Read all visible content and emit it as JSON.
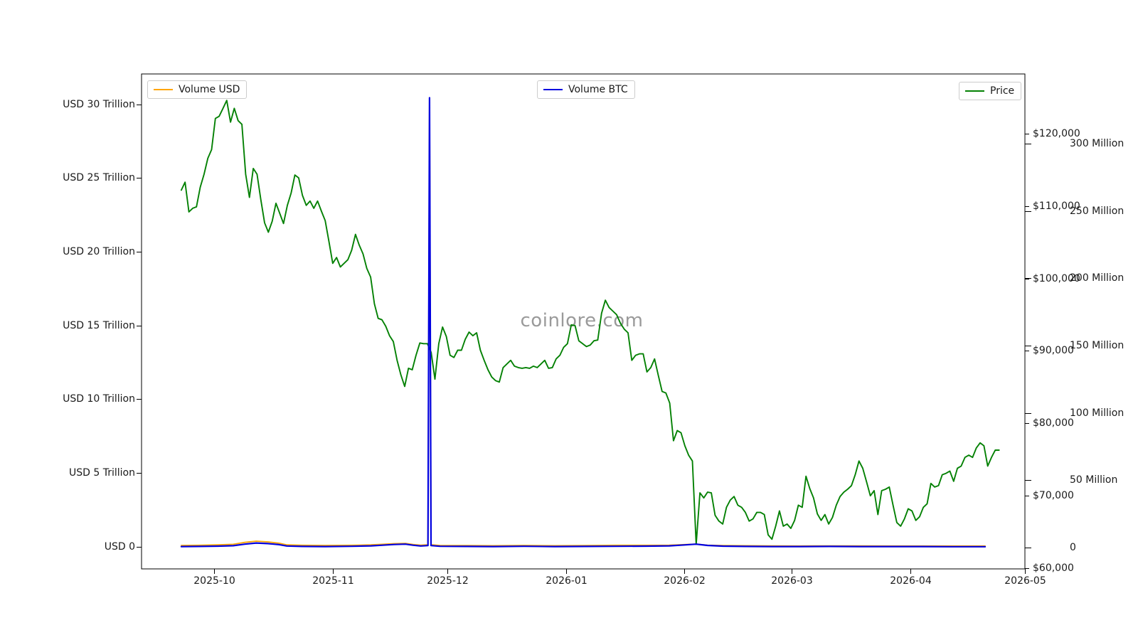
{
  "figure": {
    "watermark": "coinlore.com"
  },
  "legends": [
    {
      "id": "volume-usd",
      "label": "Volume USD",
      "color": "#ffa500"
    },
    {
      "id": "volume-btc",
      "label": "Volume BTC",
      "color": "#0000e0"
    },
    {
      "id": "price",
      "label": "Price",
      "color": "#048104"
    }
  ],
  "chart_data": {
    "type": "line",
    "watermark": "coinlore.com",
    "grid": false,
    "x_axis": {
      "start_date": "2025-09-12",
      "end_date": "2026-05-01",
      "total_days": 231,
      "ticks": [
        {
          "day": 19,
          "label": "2025-10"
        },
        {
          "day": 50,
          "label": "2025-11"
        },
        {
          "day": 80,
          "label": "2025-12"
        },
        {
          "day": 111,
          "label": "2026-01"
        },
        {
          "day": 142,
          "label": "2026-02"
        },
        {
          "day": 170,
          "label": "2026-03"
        },
        {
          "day": 201,
          "label": "2026-04"
        },
        {
          "day": 231,
          "label": "2026-05"
        }
      ]
    },
    "y_axes": {
      "volume_usd": {
        "side": "left",
        "unit": "USD Trillion",
        "range": [
          -1.5,
          32.05
        ],
        "ticks": [
          {
            "v": 0,
            "label": "USD 0"
          },
          {
            "v": 5,
            "label": "USD 5 Trillion"
          },
          {
            "v": 10,
            "label": "USD 10 Trillion"
          },
          {
            "v": 15,
            "label": "USD 15 Trillion"
          },
          {
            "v": 20,
            "label": "USD 20 Trillion"
          },
          {
            "v": 25,
            "label": "USD 25 Trillion"
          },
          {
            "v": 30,
            "label": "USD 30 Trillion"
          }
        ]
      },
      "price": {
        "side": "right",
        "unit": "USD",
        "range": [
          59900,
          128250
        ],
        "ticks": [
          {
            "v": 60000,
            "label": "$60,000"
          },
          {
            "v": 70000,
            "label": "$70,000"
          },
          {
            "v": 80000,
            "label": "$80,000"
          },
          {
            "v": 90000,
            "label": "$90,000"
          },
          {
            "v": 100000,
            "label": "$100,000"
          },
          {
            "v": 110000,
            "label": "$110,000"
          },
          {
            "v": 120000,
            "label": "$120,000"
          }
        ]
      },
      "volume_btc": {
        "side": "right_outer",
        "unit": "BTC Million",
        "range": [
          -15.8,
          351.7
        ],
        "ticks": [
          {
            "v": 0,
            "label": "0"
          },
          {
            "v": 50,
            "label": "50 Million"
          },
          {
            "v": 100,
            "label": "100 Million"
          },
          {
            "v": 150,
            "label": "150 Million"
          },
          {
            "v": 200,
            "label": "200 Million"
          },
          {
            "v": 250,
            "label": "250 Million"
          },
          {
            "v": 300,
            "label": "300 Million"
          }
        ]
      }
    },
    "series": [
      {
        "name": "Volume USD",
        "axis": "volume_usd",
        "color": "#ffa500",
        "width": 1.8,
        "points": [
          [
            10.4,
            0.09
          ],
          [
            15,
            0.1
          ],
          [
            20,
            0.13
          ],
          [
            24,
            0.17
          ],
          [
            27,
            0.3
          ],
          [
            30,
            0.38
          ],
          [
            33,
            0.33
          ],
          [
            36,
            0.24
          ],
          [
            38,
            0.13
          ],
          [
            42,
            0.1
          ],
          [
            48,
            0.09
          ],
          [
            55,
            0.1
          ],
          [
            60,
            0.13
          ],
          [
            63,
            0.17
          ],
          [
            66,
            0.21
          ],
          [
            69,
            0.23
          ],
          [
            71,
            0.16
          ],
          [
            73,
            0.11
          ],
          [
            74.9,
            0.14
          ],
          [
            75.3,
            30.4
          ],
          [
            75.7,
            0.14
          ],
          [
            78,
            0.09
          ],
          [
            85,
            0.08
          ],
          [
            92,
            0.07
          ],
          [
            100,
            0.09
          ],
          [
            108,
            0.07
          ],
          [
            116,
            0.08
          ],
          [
            124,
            0.1
          ],
          [
            132,
            0.1
          ],
          [
            138,
            0.11
          ],
          [
            142,
            0.15
          ],
          [
            145,
            0.18
          ],
          [
            148,
            0.11
          ],
          [
            152,
            0.08
          ],
          [
            158,
            0.07
          ],
          [
            165,
            0.06
          ],
          [
            172,
            0.05
          ],
          [
            180,
            0.06
          ],
          [
            188,
            0.06
          ],
          [
            196,
            0.05
          ],
          [
            204,
            0.05
          ],
          [
            212,
            0.05
          ],
          [
            220.6,
            0.05
          ]
        ]
      },
      {
        "name": "Price",
        "axis": "price",
        "color": "#048104",
        "width": 1.9,
        "start_day": 10.4,
        "step": 0.99,
        "values": [
          112200,
          113300,
          109200,
          109700,
          109900,
          112600,
          114400,
          116600,
          117800,
          122100,
          122400,
          123500,
          124600,
          121600,
          123500,
          121800,
          121300,
          114400,
          111200,
          115200,
          114400,
          110900,
          107700,
          106400,
          107900,
          110400,
          109000,
          107600,
          110100,
          111800,
          114300,
          113900,
          111500,
          110100,
          110700,
          109700,
          110700,
          109300,
          108000,
          105100,
          102100,
          102900,
          101600,
          102100,
          102600,
          103900,
          106100,
          104600,
          103400,
          101400,
          100200,
          96500,
          94500,
          94300,
          93400,
          92100,
          91300,
          88700,
          86700,
          85100,
          87600,
          87400,
          89400,
          91100,
          91000,
          91000,
          89800,
          86100,
          91000,
          93300,
          92000,
          89400,
          89100,
          90100,
          90100,
          91600,
          92600,
          92100,
          92500,
          90100,
          88700,
          87400,
          86400,
          85900,
          85700,
          87700,
          88200,
          88700,
          87900,
          87700,
          87600,
          87700,
          87600,
          87900,
          87700,
          88200,
          88700,
          87600,
          87700,
          88900,
          89400,
          90500,
          91000,
          93600,
          93500,
          91400,
          91000,
          90600,
          90800,
          91400,
          91500,
          95200,
          97000,
          96000,
          95500,
          95000,
          93800,
          93000,
          92500,
          88700,
          89400,
          89600,
          89600,
          87100,
          87700,
          88900,
          86600,
          84400,
          84200,
          82800,
          77600,
          79000,
          78700,
          76900,
          75600,
          74800,
          63300,
          70400,
          69700,
          70500,
          70400,
          67300,
          66500,
          66100,
          68400,
          69400,
          69900,
          68700,
          68400,
          67700,
          66500,
          66800,
          67700,
          67700,
          67400,
          64600,
          64000,
          65800,
          67900,
          65800,
          66100,
          65500,
          66600,
          68700,
          68400,
          72700,
          71000,
          69700,
          67500,
          66600,
          67400,
          66100,
          67000,
          68700,
          69900,
          70500,
          70900,
          71400,
          72900,
          74800,
          73800,
          71900,
          70000,
          70700,
          67400,
          70700,
          70900,
          71200,
          68700,
          66300,
          65800,
          66800,
          68200,
          67900,
          66600,
          67100,
          68400,
          68900,
          71700,
          71200,
          71400,
          72900,
          73100,
          73400,
          72000,
          73800,
          74100,
          75300,
          75600,
          75300,
          76600,
          77300,
          76900,
          74100,
          75300,
          76300,
          76300
        ]
      },
      {
        "name": "Volume BTC",
        "axis": "volume_btc",
        "color": "#0000e0",
        "width": 2.2,
        "points": [
          [
            10.4,
            0.8
          ],
          [
            15,
            0.9
          ],
          [
            20,
            1.1
          ],
          [
            24,
            1.4
          ],
          [
            27,
            2.6
          ],
          [
            30,
            3.4
          ],
          [
            33,
            3.0
          ],
          [
            36,
            2.2
          ],
          [
            38,
            1.2
          ],
          [
            42,
            0.9
          ],
          [
            48,
            0.8
          ],
          [
            55,
            1.0
          ],
          [
            60,
            1.3
          ],
          [
            63,
            1.8
          ],
          [
            66,
            2.3
          ],
          [
            69,
            2.6
          ],
          [
            71,
            1.8
          ],
          [
            73,
            1.2
          ],
          [
            74.9,
            1.5
          ],
          [
            75.3,
            334
          ],
          [
            75.7,
            1.5
          ],
          [
            78,
            1.0
          ],
          [
            85,
            0.9
          ],
          [
            92,
            0.8
          ],
          [
            100,
            1.0
          ],
          [
            108,
            0.8
          ],
          [
            116,
            0.9
          ],
          [
            124,
            1.0
          ],
          [
            132,
            1.1
          ],
          [
            138,
            1.3
          ],
          [
            142,
            2.0
          ],
          [
            145,
            2.6
          ],
          [
            148,
            1.6
          ],
          [
            152,
            1.1
          ],
          [
            158,
            0.9
          ],
          [
            165,
            0.8
          ],
          [
            172,
            0.8
          ],
          [
            180,
            0.9
          ],
          [
            188,
            0.8
          ],
          [
            196,
            0.8
          ],
          [
            204,
            0.8
          ],
          [
            212,
            0.7
          ],
          [
            220.6,
            0.7
          ]
        ]
      }
    ]
  }
}
